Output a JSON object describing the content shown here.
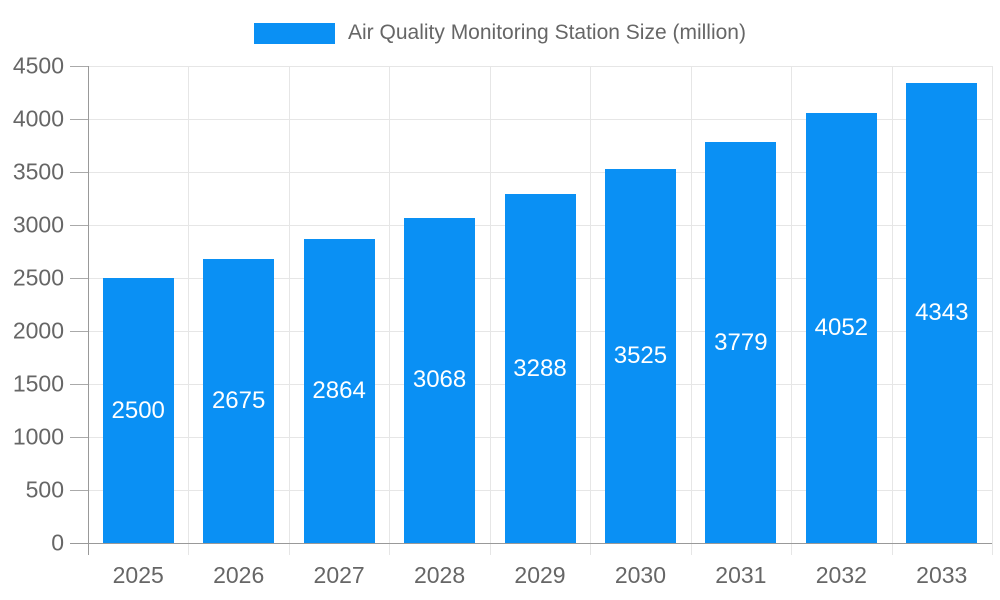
{
  "chart_data": {
    "type": "bar",
    "title": "Air Quality Monitoring Station Size (million)",
    "legend": [
      "Air Quality Monitoring Station Size (million)"
    ],
    "legend_position": "top",
    "categories": [
      "2025",
      "2026",
      "2027",
      "2028",
      "2029",
      "2030",
      "2031",
      "2032",
      "2033"
    ],
    "values": [
      2500,
      2675,
      2864,
      3068,
      3288,
      3525,
      3779,
      4052,
      4343
    ],
    "xlabel": "",
    "ylabel": "",
    "ylim": [
      0,
      4500
    ],
    "ytick_step": 500,
    "ytick_labels": [
      "0",
      "500",
      "1000",
      "1500",
      "2000",
      "2500",
      "3000",
      "3500",
      "4000",
      "4500"
    ],
    "grid": true,
    "value_labels_shown": true,
    "colors": {
      "bar": "#0a90f4",
      "gridline": "#e6e6e6",
      "axis_line": "#999999",
      "tick_mark": "#aaaaaa",
      "axis_text": "#666666",
      "value_text": "#ffffff",
      "background": "#ffffff"
    }
  }
}
